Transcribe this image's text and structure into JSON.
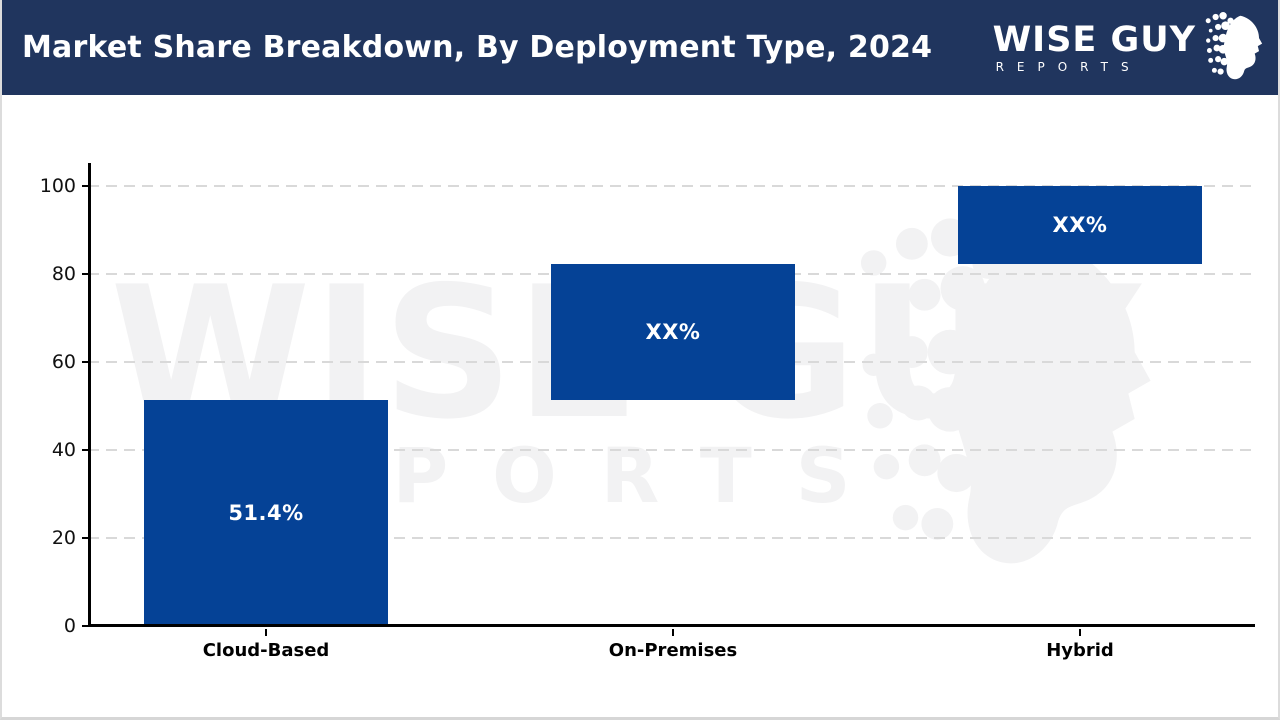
{
  "header": {
    "title": "Market Share Breakdown, By Deployment Type, 2024",
    "logo": {
      "brand": "WISE GUY",
      "sub": "REPORTS"
    }
  },
  "watermark": {
    "brand": "WISE GUY",
    "sub": "REPORTS"
  },
  "chart_data": {
    "type": "bar",
    "subtype": "waterfall",
    "title": "Market Share Breakdown, By Deployment Type, 2024",
    "categories": [
      "Cloud-Based",
      "On-Premises",
      "Hybrid"
    ],
    "segments": [
      {
        "category": "Cloud-Based",
        "start": 0,
        "end": 51.4,
        "label": "51.4%"
      },
      {
        "category": "On-Premises",
        "start": 51.4,
        "end": 82.3,
        "label": "XX%"
      },
      {
        "category": "Hybrid",
        "start": 82.3,
        "end": 100,
        "label": "XX%"
      }
    ],
    "xlabel": "",
    "ylabel": "",
    "yticks": [
      0,
      20,
      40,
      60,
      80,
      100
    ],
    "ylim": [
      0,
      105
    ],
    "grid": "horizontal-dashed",
    "legend": null,
    "bar_color": "#054296",
    "value_label_color": "#FFFFFF"
  },
  "colors": {
    "header_bg": "#20355E",
    "bar": "#054296",
    "grid": "#D9D9D9",
    "axis": "#000000",
    "watermark": "#F2F2F3",
    "title_text": "#FFFFFF",
    "tick_text": "#111111"
  }
}
